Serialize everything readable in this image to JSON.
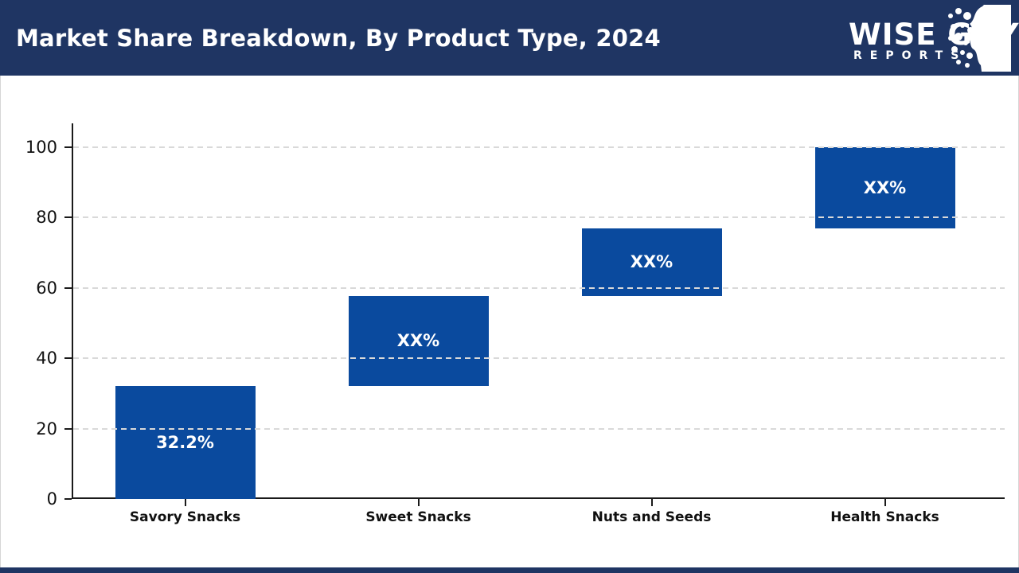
{
  "header": {
    "title": "Market Share Breakdown, By Product Type, 2024",
    "logo": {
      "line1": "WISE GUY",
      "line2": "REPORTS"
    }
  },
  "watermark": {
    "line1": "WISE GUY",
    "line2": "REPORTS"
  },
  "theme": {
    "header_bg": "#1f3563",
    "bar_color": "#0a4a9e",
    "gridline_color": "#d9d9d9",
    "watermark_color": "#f1f1f1",
    "value_label_color": "#ffffff"
  },
  "chart_data": {
    "type": "bar",
    "subtype": "waterfall-floating-segments",
    "title": "Market Share Breakdown, By Product Type, 2024",
    "categories": [
      "Savory Snacks",
      "Sweet Snacks",
      "Nuts and Seeds",
      "Health Snacks"
    ],
    "segments": [
      {
        "category": "Savory Snacks",
        "start": 0,
        "end": 32.2,
        "label": "32.2%"
      },
      {
        "category": "Sweet Snacks",
        "start": 32.2,
        "end": 57.8,
        "label": "XX%"
      },
      {
        "category": "Nuts and Seeds",
        "start": 57.8,
        "end": 77,
        "label": "XX%"
      },
      {
        "category": "Health Snacks",
        "start": 77,
        "end": 100,
        "label": "XX%"
      }
    ],
    "yticks": [
      0,
      20,
      40,
      60,
      80,
      100
    ],
    "ylim": [
      0,
      106.8
    ],
    "xlabel": "",
    "ylabel": "",
    "grid": {
      "horizontal": true,
      "style": "dashed",
      "drawn_over_bars": true
    },
    "legend": "none",
    "bar_color": "#0a4a9e"
  }
}
